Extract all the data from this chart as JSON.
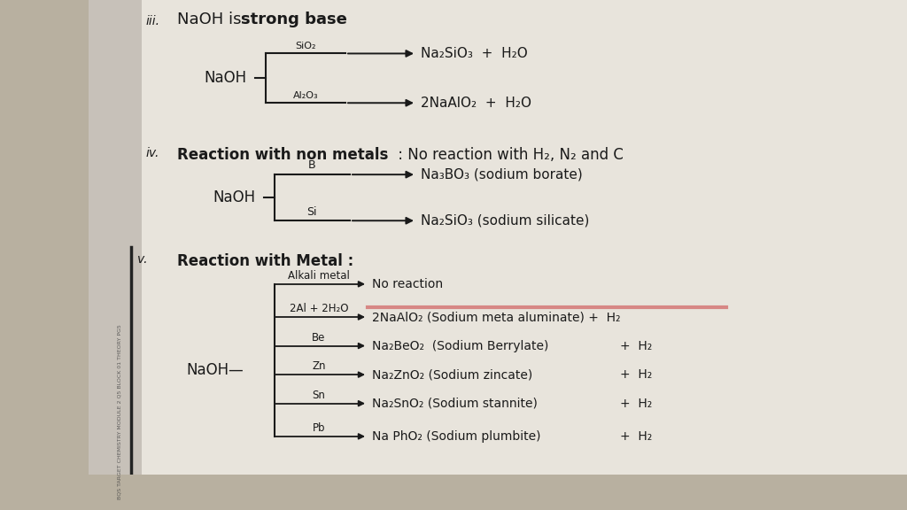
{
  "page_bg": "#b8b0a0",
  "page_color": "#e8e4dc",
  "text_color": "#1a1a1a",
  "line_color": "#1a1a1a",
  "highlight_color": "#d06060",
  "title_normal": "NaOH is ",
  "title_bold": "strong base",
  "label_iii": "iii.",
  "label_iv": "iv.",
  "label_v": "v.",
  "sec3_naoh": "NaOH",
  "sec3_b1_label": "SiO₂",
  "sec3_b1_product": "Na₂SiO₃  +  H₂O",
  "sec3_b2_label": "Al₂O₃",
  "sec3_b2_product": "2NaAlO₂  +  H₂O",
  "sec4_header_bold": "Reaction with non metals",
  "sec4_header_rest": " : No reaction with H₂, N₂ and C",
  "sec4_naoh": "NaOH",
  "sec4_b1_label": "B",
  "sec4_b1_product": "Na₃BO₃ (sodium borate)",
  "sec4_b2_label": "Si",
  "sec4_b2_product": "Na₂SiO₃ (sodium silicate)",
  "sec5_header": "Reaction with Metal :",
  "sec5_naoh": "NaOH",
  "metal_branches": [
    {
      "label": "Alkali metal",
      "product": "No reaction",
      "h2": false
    },
    {
      "label": "2Al + 2H₂O",
      "product": "2NaAlO₂ (Sodium meta aluminate) +  H₂",
      "h2": false
    },
    {
      "label": "Be",
      "product": "Na₂BeO₂  (Sodium Berrylate)",
      "h2": true
    },
    {
      "label": "Zn",
      "product": "Na₂ZnO₂ (Sodium zincate)",
      "h2": true
    },
    {
      "label": "Sn",
      "product": "Na₂SnO₂ (Sodium stannite)",
      "h2": true
    },
    {
      "label": "Pb",
      "product": "Na PhO₂ (Sodium plumbite)",
      "h2": true
    }
  ]
}
